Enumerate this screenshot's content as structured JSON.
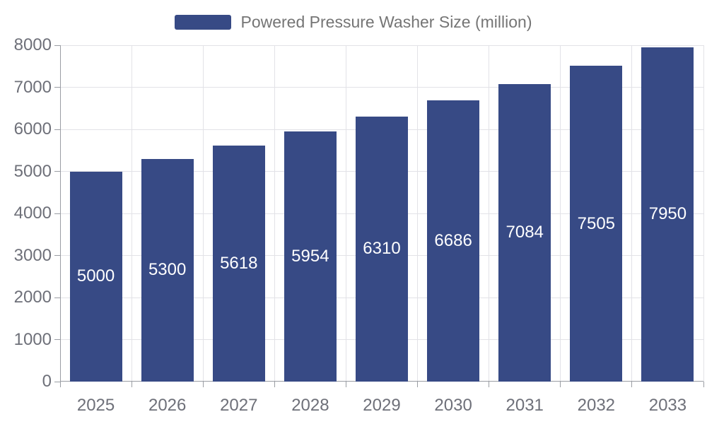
{
  "legend": {
    "label": "Powered Pressure Washer Size (million)"
  },
  "chart_data": {
    "type": "bar",
    "title": "Powered Pressure Washer Size (million)",
    "categories": [
      "2025",
      "2026",
      "2027",
      "2028",
      "2029",
      "2030",
      "2031",
      "2032",
      "2033"
    ],
    "values": [
      5000,
      5300,
      5618,
      5954,
      6310,
      6686,
      7084,
      7505,
      7950
    ],
    "xlabel": "",
    "ylabel": "",
    "ylim": [
      0,
      8000
    ],
    "yticks": [
      0,
      1000,
      2000,
      3000,
      4000,
      5000,
      6000,
      7000,
      8000
    ],
    "grid": true,
    "legend_position": "top",
    "value_labels": "inside-center",
    "colors": {
      "bar": "#374A85",
      "value_label": "#FFFFFF",
      "axis_text": "#6E7079",
      "legend_text": "#757575",
      "grid_line": "#E2E2E7",
      "axis_line": "#9A9DA3"
    }
  }
}
